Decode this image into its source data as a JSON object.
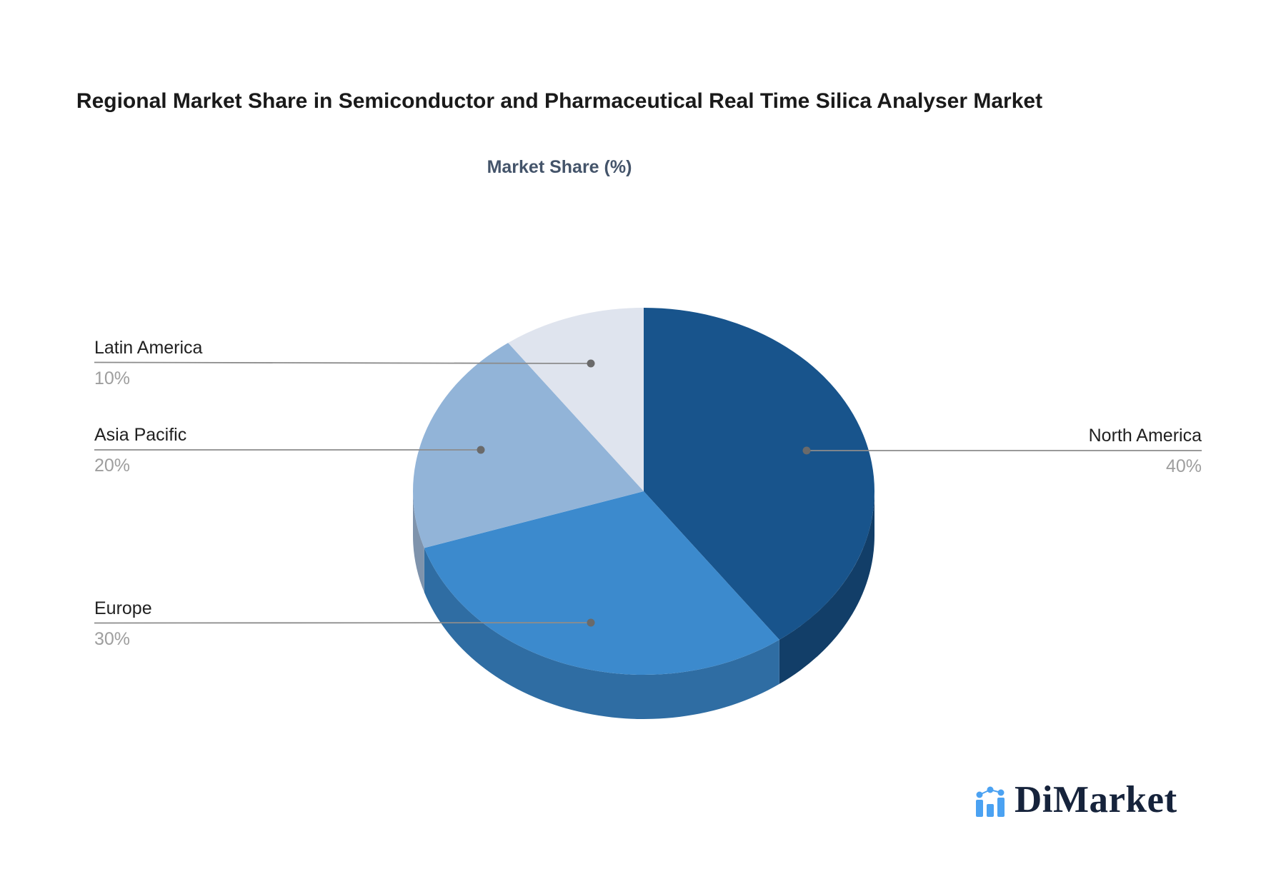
{
  "title": "Regional Market Share in Semiconductor and Pharmaceutical Real Time Silica Analyser Market",
  "subtitle": "Market Share (%)",
  "chart_data": {
    "type": "pie",
    "title": "Regional Market Share in Semiconductor and Pharmaceutical Real Time Silica Analyser Market",
    "subtitle": "Market Share (%)",
    "unit": "%",
    "effect": "3d",
    "rotation": "starts at 12 o'clock, clockwise",
    "legend_position": "external callout labels with leader lines",
    "slices": [
      {
        "label": "North America",
        "value": 40,
        "display": "40%",
        "color": "#18548C",
        "side_color": "#123E68"
      },
      {
        "label": "Europe",
        "value": 30,
        "display": "30%",
        "color": "#3C8ACD",
        "side_color": "#2F6DA3"
      },
      {
        "label": "Asia Pacific",
        "value": 20,
        "display": "20%",
        "color": "#92B4D8",
        "side_color": "#7E93AC"
      },
      {
        "label": "Latin America",
        "value": 10,
        "display": "10%",
        "color": "#DFE4EE",
        "side_color": "#C2CBD9"
      }
    ]
  },
  "colors": {
    "background": "#FFFFFF",
    "title_text": "#1A1A1A",
    "subtitle_text": "#44546A",
    "label_text": "#212121",
    "value_text": "#9E9E9E",
    "leader_line": "#8C8C8C",
    "leader_dot": "#6A6A6A",
    "logo_blue": "#4BA2F2",
    "logo_text": "#16233B"
  },
  "branding": {
    "logo_text": "DiMarket",
    "logo_icon": "bar-chart-trend-icon"
  }
}
